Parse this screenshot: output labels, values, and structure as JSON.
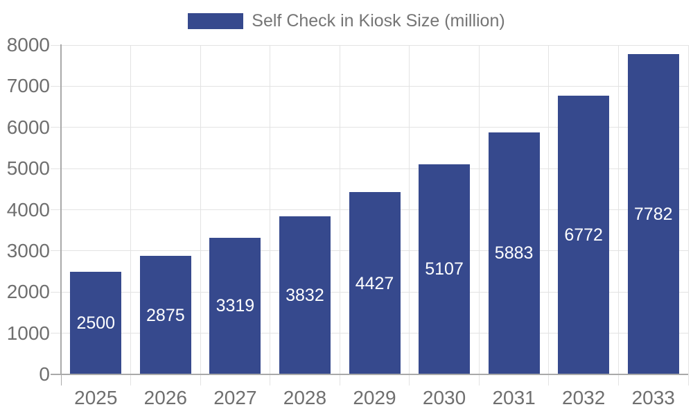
{
  "legend": {
    "label": "Self Check in Kiosk Size (million)"
  },
  "chart_data": {
    "type": "bar",
    "title": "Self Check in Kiosk Size (million)",
    "series_name": "Self Check in Kiosk Size (million)",
    "categories": [
      "2025",
      "2026",
      "2027",
      "2028",
      "2029",
      "2030",
      "2031",
      "2032",
      "2033"
    ],
    "values": [
      2500,
      2875,
      3319,
      3832,
      4427,
      5107,
      5883,
      6772,
      7782
    ],
    "xlabel": "",
    "ylabel": "",
    "ylim": [
      0,
      8000
    ],
    "yticks": [
      0,
      1000,
      2000,
      3000,
      4000,
      5000,
      6000,
      7000,
      8000
    ],
    "grid": true,
    "legend_position": "top-center",
    "value_label_position": "inside-center",
    "colors": {
      "bar": "#36498D",
      "value_label": "#FFFFFF",
      "axis_line": "#A9A9A9",
      "gridline": "#E3E3E3",
      "tick_label": "#6F6F6F",
      "legend_text": "#757575",
      "background": "#FFFFFF"
    }
  }
}
